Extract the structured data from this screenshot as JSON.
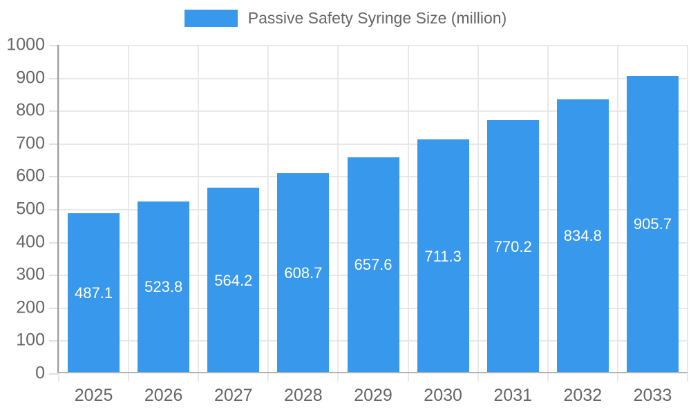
{
  "legend": {
    "label": "Passive Safety Syringe Size (million)",
    "swatch_color": "#3898ec"
  },
  "chart_data": {
    "type": "bar",
    "title": "Passive Safety Syringe Size (million)",
    "series_name": "Passive Safety Syringe Size (million)",
    "categories": [
      "2025",
      "2026",
      "2027",
      "2028",
      "2029",
      "2030",
      "2031",
      "2032",
      "2033"
    ],
    "values": [
      487.1,
      523.8,
      564.2,
      608.7,
      657.6,
      711.3,
      770.2,
      834.8,
      905.7
    ],
    "data_labels_shown": true,
    "xlabel": "",
    "ylabel": "",
    "ylim": [
      0,
      1000
    ],
    "yticks": [
      0,
      100,
      200,
      300,
      400,
      500,
      600,
      700,
      800,
      900,
      1000
    ],
    "grid": true,
    "legend_position": "top-center",
    "colors": {
      "bar": "#3898ec",
      "data_label": "#ffffff",
      "axis_text": "#666666",
      "gridline": "#e8e8e8",
      "tick": "#e0e0e0",
      "y_axis_line": "#9e9e9e",
      "x_axis_line": "#b3b3b3",
      "background": "#ffffff"
    }
  }
}
